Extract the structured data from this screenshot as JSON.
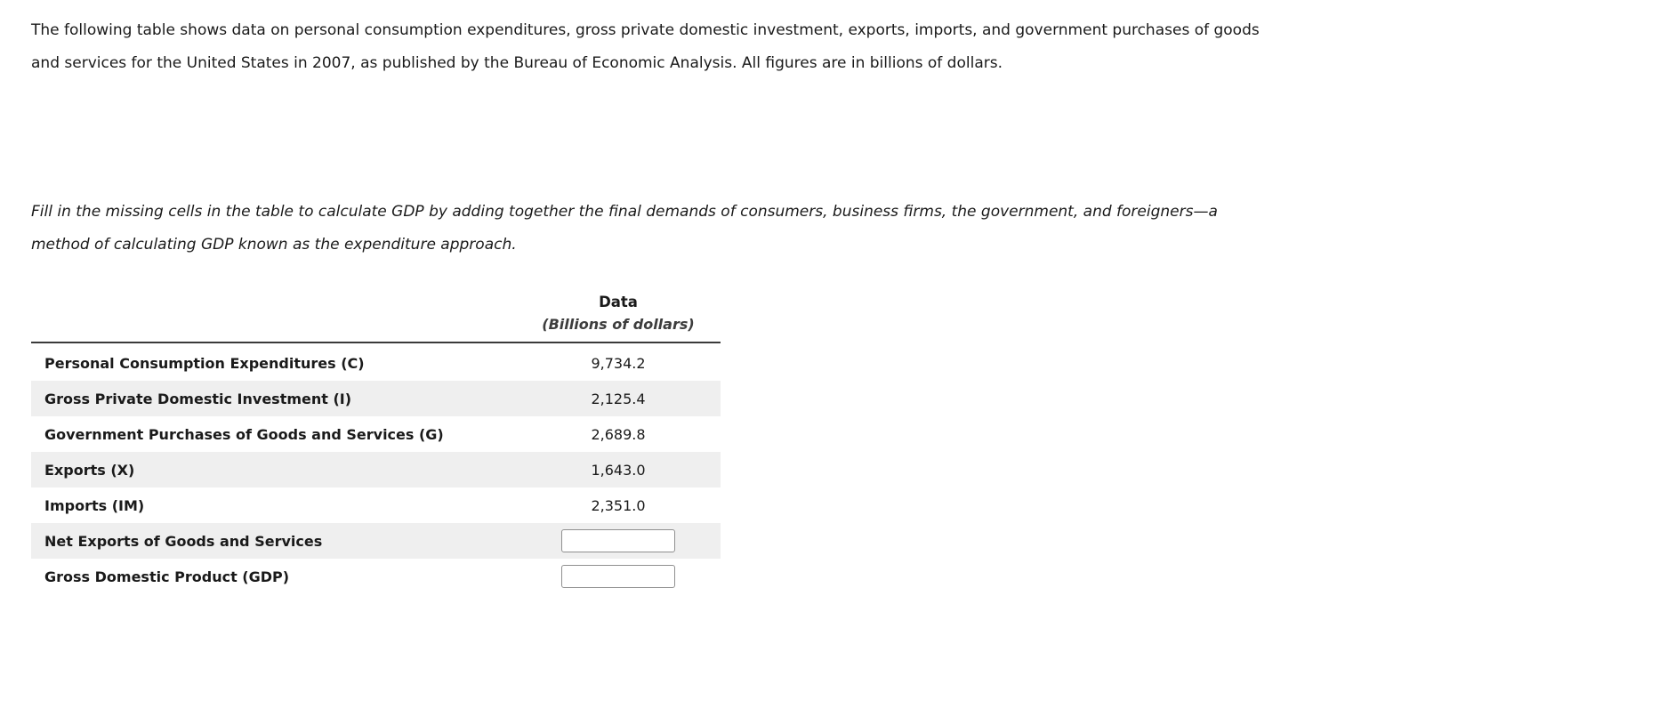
{
  "intro": "The following table shows data on personal consumption expenditures, gross private domestic investment, exports, imports, and government purchases of goods and services for the United States in 2007, as published by the Bureau of Economic Analysis. All figures are in billions of dollars.",
  "instruction": "Fill in the missing cells in the table to calculate GDP by adding together the final demands of consumers, business firms, the government, and foreigners—a method of calculating GDP known as the expenditure approach.",
  "table": {
    "header": {
      "title": "Data",
      "subtitle": "(Billions of dollars)"
    },
    "rows": [
      {
        "label": "Personal Consumption Expenditures (C)",
        "value": "9,734.2"
      },
      {
        "label": "Gross Private Domestic Investment (I)",
        "value": "2,125.4"
      },
      {
        "label": "Government Purchases of Goods and Services (G)",
        "value": "2,689.8"
      },
      {
        "label": "Exports (X)",
        "value": "1,643.0"
      },
      {
        "label": "Imports (IM)",
        "value": "2,351.0"
      },
      {
        "label": "Net Exports of Goods and Services",
        "value": ""
      },
      {
        "label": "Gross Domestic Product (GDP)",
        "value": ""
      }
    ]
  },
  "colors": {
    "row_shade": "#efefef",
    "text": "#1a1a1a",
    "header_rule": "#3a3a3a"
  }
}
